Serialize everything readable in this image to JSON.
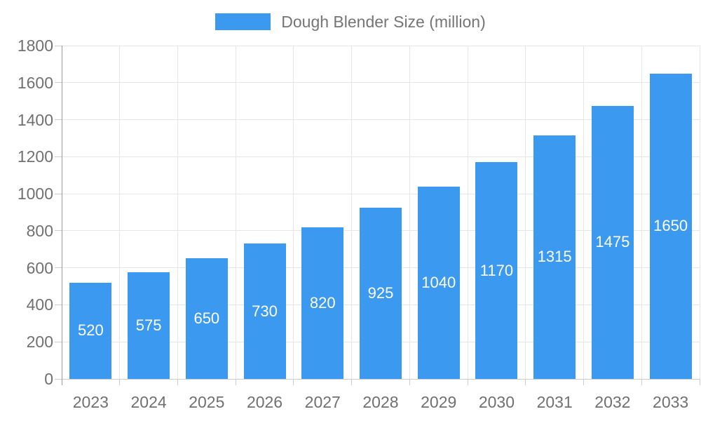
{
  "legend": {
    "label": "Dough Blender Size (million)"
  },
  "colors": {
    "bar": "#3B99F0",
    "value_label": "#ffffff",
    "axis_text": "#707070",
    "legend_text": "#757575",
    "gridline": "#e6e6e6",
    "y_axis_line": "#999999",
    "x_axis_line": "#cccccc",
    "tick": "#cccccc",
    "background": "#ffffff"
  },
  "chart_data": {
    "type": "bar",
    "title": "",
    "categories": [
      "2023",
      "2024",
      "2025",
      "2026",
      "2027",
      "2028",
      "2029",
      "2030",
      "2031",
      "2032",
      "2033"
    ],
    "series": [
      {
        "name": "Dough Blender Size (million)",
        "values": [
          520,
          575,
          650,
          730,
          820,
          925,
          1040,
          1170,
          1315,
          1475,
          1650
        ]
      }
    ],
    "xlabel": "",
    "ylabel": "",
    "ylim": [
      0,
      1800
    ],
    "yticks": [
      0,
      200,
      400,
      600,
      800,
      1000,
      1200,
      1400,
      1600,
      1800
    ],
    "grid": true,
    "legend_position": "top-center",
    "value_labels": "centered-inside-white"
  }
}
